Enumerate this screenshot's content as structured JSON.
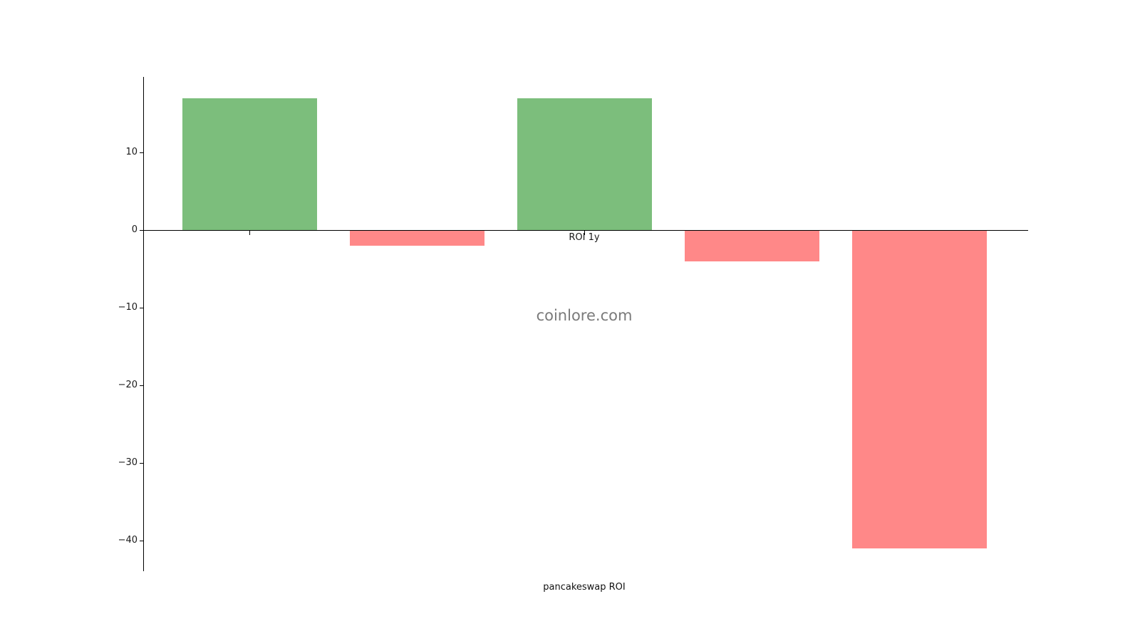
{
  "watermark": "coinlore.com",
  "title": "pancakeswap ROI",
  "colors": {
    "positive": "#7cbe7c",
    "negative": "#ff8888",
    "axis": "#000000",
    "watermark_text": "#7a7a7a"
  },
  "chart_data": {
    "type": "bar",
    "title": "pancakeswap ROI",
    "watermark": "coinlore.com",
    "categories": [
      "",
      "",
      "ROI 1y",
      "",
      ""
    ],
    "values": [
      17,
      -2,
      17,
      -4,
      -41
    ],
    "bar_colors_by_sign": true,
    "yticks": [
      10,
      0,
      -10,
      -20,
      -30,
      -40
    ],
    "ytick_labels": [
      "10",
      "0",
      "−10",
      "−20",
      "−30",
      "−40"
    ],
    "ylim": [
      -44,
      19.7
    ],
    "xtick_marks_at": [
      0,
      2
    ],
    "xlabel": "",
    "ylabel": "",
    "grid": false,
    "legend": false
  }
}
